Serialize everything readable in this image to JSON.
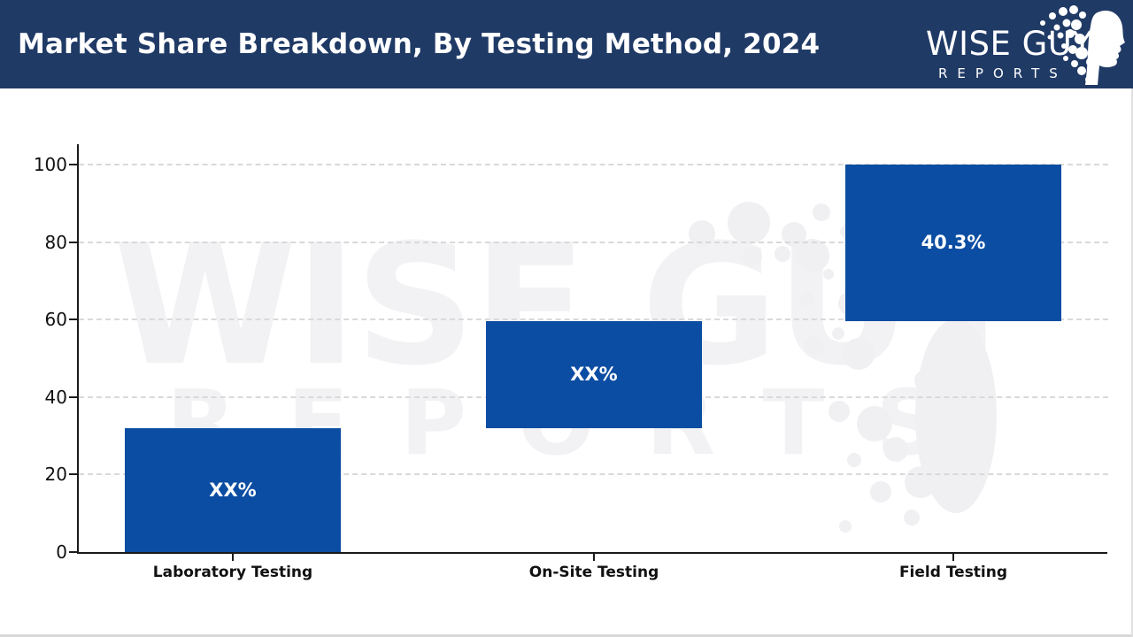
{
  "header": {
    "title": "Market Share Breakdown, By Testing Method, 2024",
    "logo": {
      "line1": "WISE GUY",
      "line2": "REPORTS"
    }
  },
  "watermark": {
    "line1": "WISE GUY",
    "line2": "REPORTS"
  },
  "colors": {
    "header_bg": "#203A66",
    "bar_blue": "#0B4DA2",
    "grid_gray": "#D9D9D9",
    "axis_black": "#1A1A1A",
    "bar_label_white": "#FFFFFF",
    "watermark_gray": "#F2F2F4"
  },
  "chart_data": {
    "type": "bar",
    "subtype": "waterfall",
    "title": "Market Share Breakdown, By Testing Method, 2024",
    "xlabel": "",
    "ylabel": "",
    "ylim": [
      0,
      100
    ],
    "yticks": [
      0,
      20,
      40,
      60,
      80,
      100
    ],
    "grid": "horizontal-dashed",
    "legend": "none",
    "categories": [
      "Laboratory Testing",
      "On-Site Testing",
      "Field Testing"
    ],
    "bars": [
      {
        "category": "Laboratory Testing",
        "start": 0,
        "end": 31.9,
        "value": 31.9,
        "label": "XX%"
      },
      {
        "category": "On-Site Testing",
        "start": 31.9,
        "end": 59.7,
        "value": 27.8,
        "label": "XX%"
      },
      {
        "category": "Field Testing",
        "start": 59.7,
        "end": 100,
        "value": 40.3,
        "label": "40.3%"
      }
    ]
  }
}
